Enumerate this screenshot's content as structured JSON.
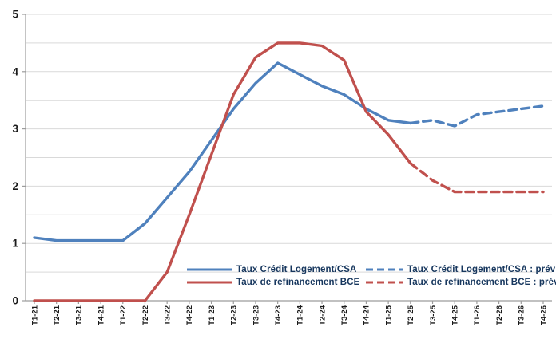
{
  "chart_data": {
    "type": "line",
    "title": "",
    "xlabel": "",
    "ylabel": "",
    "ylim": [
      0,
      5
    ],
    "y_ticks": [
      0,
      1,
      2,
      3,
      4,
      5
    ],
    "grid": true,
    "grid_step": 0.5,
    "legend_position": "bottom-center-inside",
    "categories": [
      "T1-21",
      "T2-21",
      "T3-21",
      "T4-21",
      "T1-22",
      "T2-22",
      "T3-22",
      "T4-22",
      "T1-23",
      "T2-23",
      "T3-23",
      "T4-23",
      "T1-24",
      "T2-24",
      "T3-24",
      "T4-24",
      "T1-25",
      "T2-25",
      "T3-25",
      "T4-25",
      "T1-26",
      "T2-26",
      "T3-26",
      "T4-26"
    ],
    "series": [
      {
        "name": "Taux Crédit Logement/CSA",
        "color": "#4f81bd",
        "style": "solid",
        "values": [
          1.1,
          1.05,
          1.05,
          1.05,
          1.05,
          1.35,
          1.8,
          2.25,
          2.8,
          3.35,
          3.8,
          4.15,
          3.95,
          3.75,
          3.6,
          3.35,
          3.15,
          3.1,
          null,
          null,
          null,
          null,
          null,
          null
        ]
      },
      {
        "name": "Taux de refinancement BCE",
        "color": "#c0504d",
        "style": "solid",
        "values": [
          0,
          0,
          0,
          0,
          0,
          0,
          0.5,
          1.5,
          2.55,
          3.6,
          4.25,
          4.5,
          4.5,
          4.45,
          4.2,
          3.3,
          2.9,
          2.4,
          null,
          null,
          null,
          null,
          null,
          null
        ]
      },
      {
        "name": "Taux Crédit Logement/CSA : prévision",
        "color": "#4f81bd",
        "style": "dashed",
        "values": [
          null,
          null,
          null,
          null,
          null,
          null,
          null,
          null,
          null,
          null,
          null,
          null,
          null,
          null,
          null,
          null,
          null,
          3.1,
          3.15,
          3.05,
          3.25,
          3.3,
          3.35,
          3.4
        ]
      },
      {
        "name": "Taux de refinancement BCE : prévision",
        "color": "#c0504d",
        "style": "dashed",
        "values": [
          null,
          null,
          null,
          null,
          null,
          null,
          null,
          null,
          null,
          null,
          null,
          null,
          null,
          null,
          null,
          null,
          null,
          2.4,
          2.1,
          1.9,
          1.9,
          1.9,
          1.9,
          1.9
        ]
      }
    ]
  },
  "legend": {
    "items": [
      {
        "label": "Taux Crédit Logement/CSA",
        "color": "#4f81bd",
        "style": "solid"
      },
      {
        "label": "Taux de refinancement BCE",
        "color": "#c0504d",
        "style": "solid"
      },
      {
        "label": "Taux Crédit Logement/CSA : prévision",
        "color": "#4f81bd",
        "style": "dashed"
      },
      {
        "label": "Taux de refinancement BCE : prévision",
        "color": "#c0504d",
        "style": "dashed"
      }
    ],
    "text_color": "#17375e"
  },
  "colors": {
    "grid": "#d9d9d9",
    "axis": "#9c9c9c",
    "tick_label": "#1a1a1a",
    "background": "#ffffff"
  }
}
